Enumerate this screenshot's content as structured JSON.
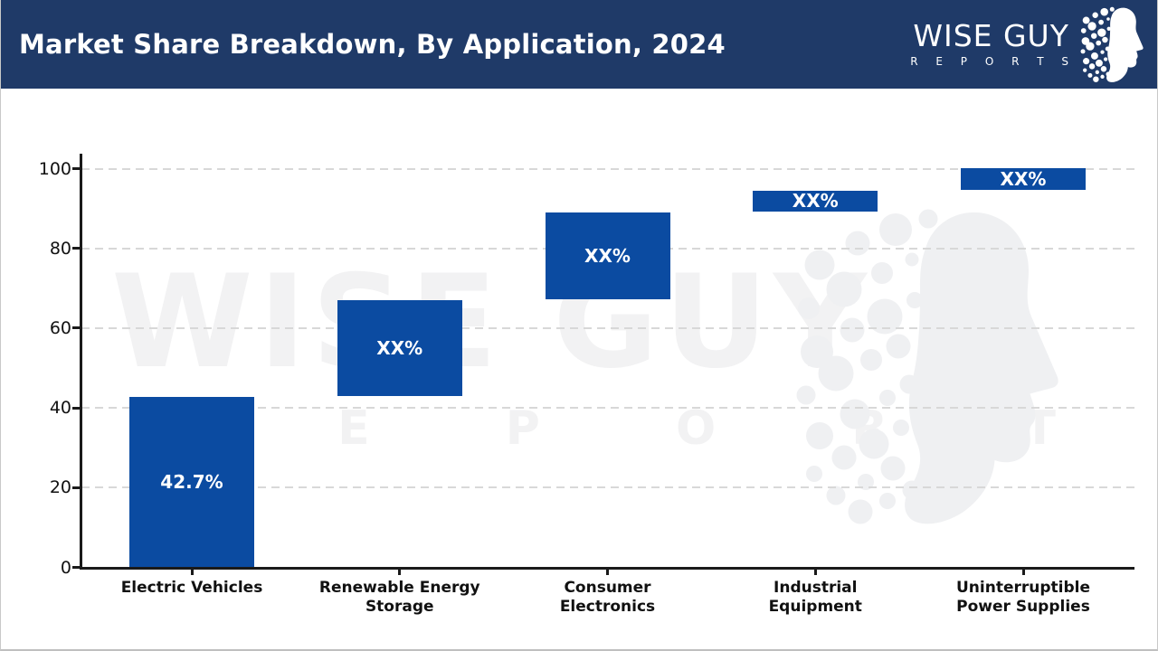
{
  "header": {
    "title": "Market Share Breakdown, By Application, 2024",
    "brand": {
      "line1": "WISE GUY",
      "line2": "R E P O R T S"
    }
  },
  "watermark": {
    "line1": "WISE GUY",
    "line2": "R E P O R T S"
  },
  "chart_data": {
    "type": "bar",
    "variant": "stacked-waterfall",
    "title": "Market Share Breakdown, By Application, 2024",
    "unit": "percent market share",
    "ylim": [
      0,
      103.7
    ],
    "y_ticks": [
      0,
      20,
      40,
      60,
      80,
      100
    ],
    "grid": "horizontal dashed",
    "legend": "none",
    "categories": [
      "Electric Vehicles",
      "Renewable Energy Storage",
      "Consumer Electronics",
      "Industrial Equipment",
      "Uninterruptible Power Supplies"
    ],
    "segments": [
      {
        "category": "Electric Vehicles",
        "category_lines": [
          "Electric Vehicles"
        ],
        "start": 0,
        "end": 42.7,
        "label": "42.7%"
      },
      {
        "category": "Renewable Energy Storage",
        "category_lines": [
          "Renewable Energy",
          "Storage"
        ],
        "start": 42.9,
        "end": 67.0,
        "label": "XX%"
      },
      {
        "category": "Consumer Electronics",
        "category_lines": [
          "Consumer",
          "Electronics"
        ],
        "start": 67.2,
        "end": 89.0,
        "label": "XX%"
      },
      {
        "category": "Industrial Equipment",
        "category_lines": [
          "Industrial",
          "Equipment"
        ],
        "start": 89.3,
        "end": 94.4,
        "label": "XX%"
      },
      {
        "category": "Uninterruptible Power Supplies",
        "category_lines": [
          "Uninterruptible",
          "Power Supplies"
        ],
        "start": 94.6,
        "end": 100.1,
        "label": "XX%"
      }
    ],
    "colors": {
      "bar": "#0b4ba1",
      "bar_label_text": "#ffffff",
      "header_bg": "#1f3a68",
      "gridline": "#d8d8d8",
      "spine": "#1a1a1a",
      "watermark": "#f2f2f3"
    }
  }
}
